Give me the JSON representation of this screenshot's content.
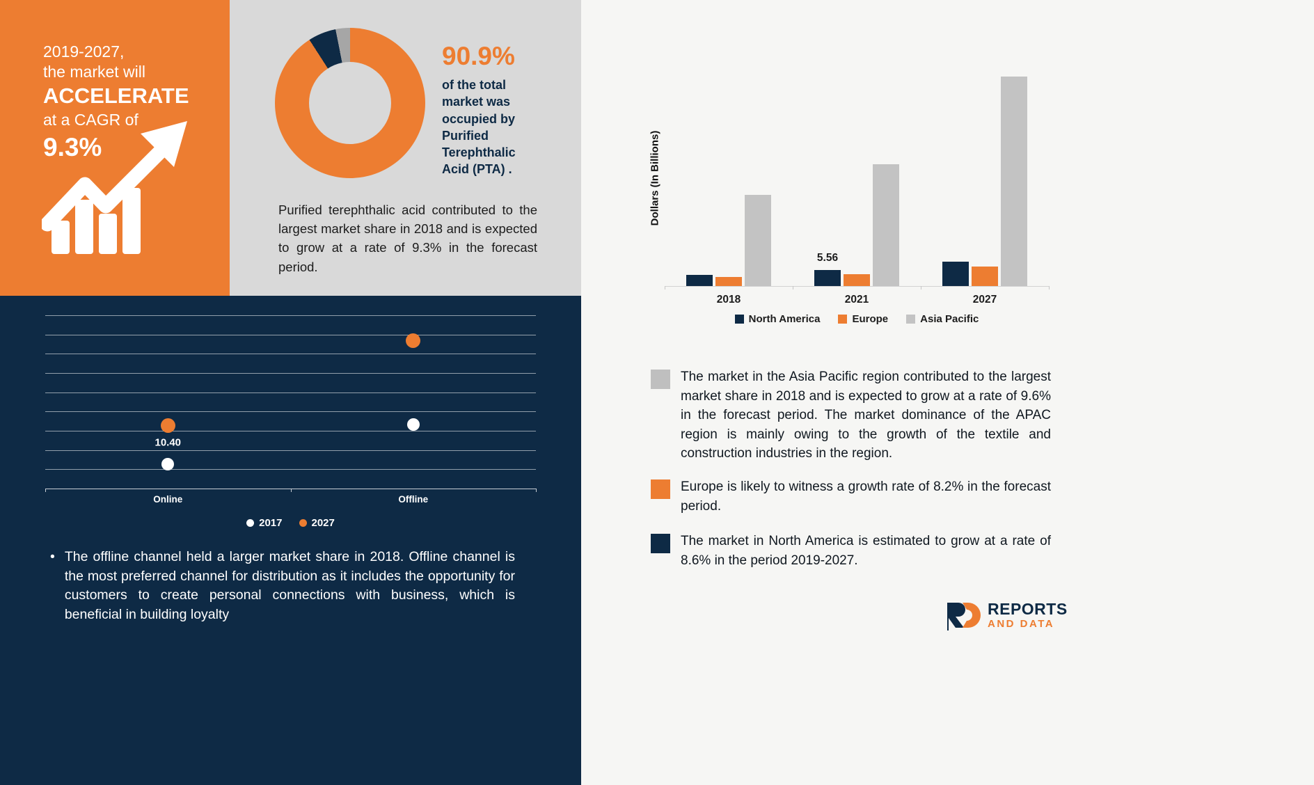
{
  "palette": {
    "orange": "#ED7D31",
    "navy": "#0E2A45",
    "gray": "#BFBFBF",
    "panel_gray": "#D9D9D9"
  },
  "promo": {
    "line1": "2019-2027,",
    "line2": "the market will",
    "line3": "ACCELERATE",
    "line4": "at a CAGR of",
    "line5": "9.3%"
  },
  "pta": {
    "stat": "90.9%",
    "stat_caption": "of the total market was occupied by Purified Terephthalic Acid (PTA) .",
    "paragraph": "Purified terephthalic acid contributed to the largest market share in 2018 and is expected to grow at a rate of 9.3% in the forecast period."
  },
  "channel": {
    "marker": "•",
    "bullet": "The offline channel held a larger market share in 2018. Offline channel is the most preferred channel for distribution as it includes the opportunity for customers to create personal connections with business, which is beneficial in building loyalty"
  },
  "regions": {
    "bullets": [
      {
        "color": "#BFBFBF",
        "text": "The market in the Asia Pacific region contributed to the largest market share in 2018 and is expected to grow at a rate of 9.6% in the forecast period. The market dominance of the APAC region is mainly owing to the growth of the textile and construction industries in the region."
      },
      {
        "color": "#ED7D31",
        "text": "Europe is likely to witness a growth rate of 8.2% in the forecast period."
      },
      {
        "color": "#0E2A45",
        "text": "The market in North America is estimated to grow at a rate of 8.6% in the period 2019-2027."
      }
    ]
  },
  "logo": {
    "line1": "REPORTS",
    "line2": "AND DATA"
  },
  "chart_data": [
    {
      "id": "pta-donut",
      "type": "pie",
      "title": "",
      "segments": [
        {
          "label": "Purified Terephthalic Acid (PTA)",
          "value": 90.9,
          "color": "#ED7D31"
        },
        {
          "label": "other",
          "value": 6.0,
          "color": "#0E2A45"
        },
        {
          "label": "other",
          "value": 3.1,
          "color": "#A6A6A6"
        }
      ],
      "annotation": "90.9% of the total market was occupied by Purified Terephthalic Acid (PTA)"
    },
    {
      "id": "channel-dot-plot",
      "type": "scatter",
      "categories": [
        "Online",
        "Offline"
      ],
      "series": [
        {
          "name": "2017",
          "color": "#FFFFFF",
          "values": [
            10.4,
            27.6
          ]
        },
        {
          "name": "2027",
          "color": "#ED7D31",
          "values": [
            27.3,
            63.9
          ]
        }
      ],
      "data_labels": [
        {
          "series": "2017",
          "category": "Online",
          "text": "10.40"
        }
      ],
      "ylim": [
        0,
        75
      ],
      "gridline_count": 9,
      "grid": true,
      "legend_position": "bottom"
    },
    {
      "id": "regional-bar-chart",
      "type": "bar",
      "categories": [
        "2018",
        "2021",
        "2027"
      ],
      "series": [
        {
          "name": "North America",
          "color": "#0E2A45",
          "values": [
            3.9,
            5.56,
            8.5
          ]
        },
        {
          "name": "Europe",
          "color": "#ED7D31",
          "values": [
            3.1,
            4.1,
            6.8
          ]
        },
        {
          "name": "Asia Pacific",
          "color": "#C3C3C3",
          "values": [
            31.7,
            42.1,
            72.5
          ]
        }
      ],
      "data_labels": [
        {
          "series": "North America",
          "category": "2021",
          "text": "5.56"
        }
      ],
      "xlabel": "",
      "ylabel": "Dollars (In Billions)",
      "ylim": [
        0,
        75
      ],
      "grid": false,
      "legend_position": "bottom"
    }
  ]
}
